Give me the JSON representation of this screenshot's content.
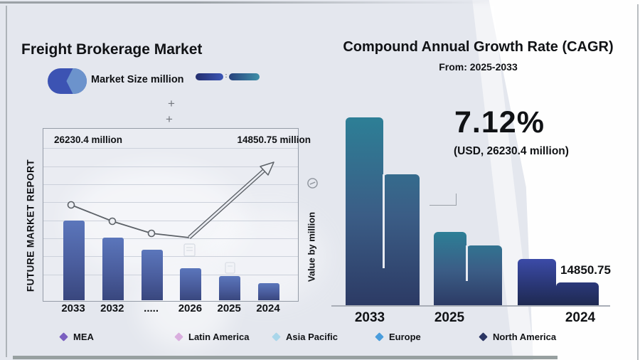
{
  "left_panel": {
    "title": "Freight Brokerage Market",
    "series_label": "Market Size million",
    "ratio_separator": ":",
    "value_high": "26230.4 million",
    "value_low": "14850.75 million",
    "watermark_vertical": "FUTURE MARKET REPORT",
    "axis_label": "Value by million"
  },
  "right_panel": {
    "title": "Compound Annual Growth Rate (CAGR)",
    "subtitle": "From: 2025-2033",
    "cagr_value": "7.12%",
    "cagr_basis": "(USD, 26230.4 million)",
    "end_value_label": "14850.75"
  },
  "region_legend": [
    {
      "label": "MEA",
      "color": "#7a5fc0"
    },
    {
      "label": "Latin America",
      "color": "#d9aede"
    },
    {
      "label": "Asia Pacific",
      "color": "#a9d6ea"
    },
    {
      "label": "Europe",
      "color": "#4a9ddc"
    },
    {
      "label": "North America",
      "color": "#2b3563"
    }
  ],
  "decor": {
    "plus_glyph": "+"
  },
  "colors": {
    "background": "#e4e7ee",
    "left_bar_top": "#5b76bb",
    "left_bar_bottom": "#39477e",
    "teal_bar_top": "#2d7f96",
    "teal_bar_mid": "#3b5d86",
    "teal_bar_bottom": "#2c3a64",
    "navy_bar_top": "#3c4ba8",
    "navy_bar_bottom": "#1e2950",
    "pill_blue": "#3b55b5",
    "pill_teal": "#3f8fa8"
  },
  "chart_data": [
    {
      "type": "bar",
      "title": "Freight Brokerage Market",
      "series_label": "Market Size million",
      "categories": [
        "2033",
        "2032",
        ".....",
        "2026",
        "2025",
        "2024"
      ],
      "relative_heights": [
        1.0,
        0.79,
        0.63,
        0.4,
        0.3,
        0.21
      ],
      "labeled_values": {
        "2033": "26230.4 million",
        "2024": "14850.75 million"
      },
      "ylabel": "Value by million",
      "annotations": [
        "declining trend line with three circle markers",
        "outlined arrow rising to top right"
      ],
      "grid": true,
      "legend_position": "top-left"
    },
    {
      "type": "bar",
      "title": "Compound Annual Growth Rate (CAGR)",
      "subtitle": "From: 2025-2033",
      "cagr_percent": 7.12,
      "basis": "(USD, 26230.4 million)",
      "categories": [
        "2033",
        "2025",
        "2024"
      ],
      "pair_relative_heights": [
        [
          1.0,
          0.698
        ],
        [
          0.392,
          0.321
        ],
        [
          0.249,
          0.125
        ]
      ],
      "labeled_values": {
        "2024": "14850.75"
      },
      "grid": false
    }
  ]
}
